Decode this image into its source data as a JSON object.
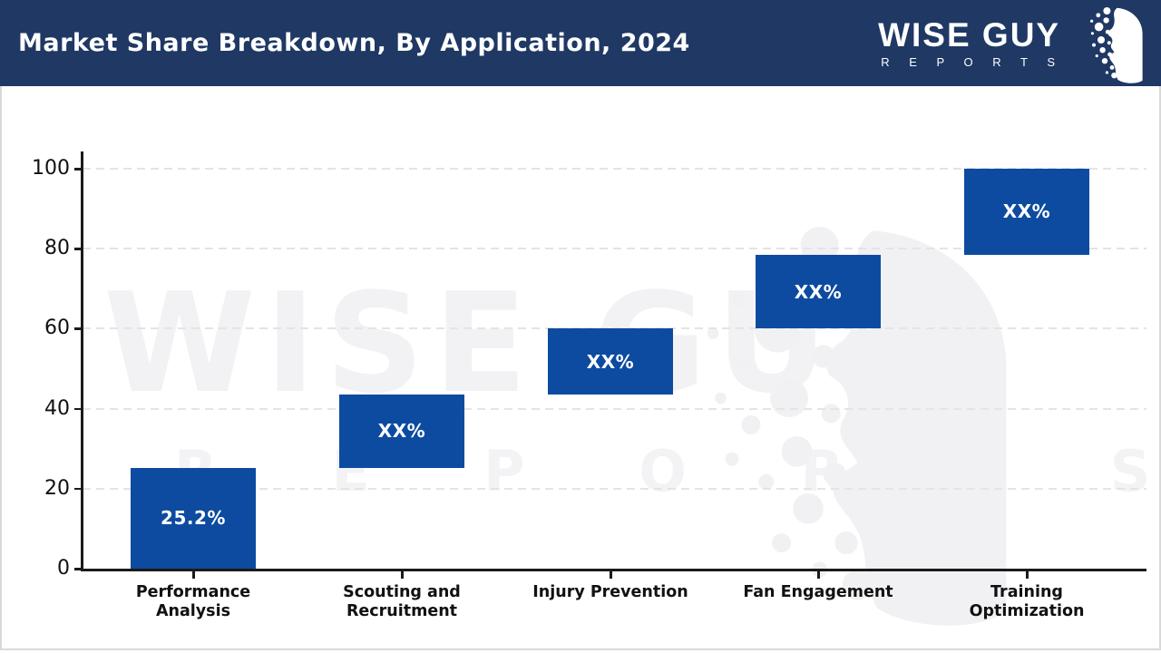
{
  "header": {
    "title": "Market Share Breakdown, By Application, 2024",
    "logo": {
      "line1": "WISE GUY",
      "line2": "R E P O R T S"
    }
  },
  "watermark": {
    "line1": "WISE GUY",
    "line2": "R E P O R T S"
  },
  "chart_data": {
    "type": "bar",
    "subtype": "waterfall",
    "title": "Market Share Breakdown, By Application, 2024",
    "xlabel": "",
    "ylabel": "",
    "categories": [
      "Performance Analysis",
      "Scouting and Recruitment",
      "Injury Prevention",
      "Fan Engagement",
      "Training Optimization"
    ],
    "category_lines": [
      [
        "Performance",
        "Analysis"
      ],
      [
        "Scouting and",
        "Recruitment"
      ],
      [
        "Injury Prevention"
      ],
      [
        "Fan Engagement"
      ],
      [
        "Training",
        "Optimization"
      ]
    ],
    "segments": [
      {
        "label": "25.2%",
        "start": 0,
        "end": 25.2
      },
      {
        "label": "XX%",
        "start": 25.2,
        "end": 43.6
      },
      {
        "label": "XX%",
        "start": 43.6,
        "end": 60.0
      },
      {
        "label": "XX%",
        "start": 60.0,
        "end": 78.5
      },
      {
        "label": "XX%",
        "start": 78.5,
        "end": 100.0
      }
    ],
    "yticks": [
      0,
      20,
      40,
      60,
      80,
      100
    ],
    "ylim": [
      0,
      104
    ],
    "grid": "horizontal-dashed",
    "legend": "none"
  },
  "colors": {
    "header_bg": "#1f3864",
    "bar": "#0d4ba0",
    "bar_label": "#ffffff",
    "grid": "#e4e4e4",
    "axis": "#1a1a1a",
    "watermark": "#f2f2f4",
    "card_border": "#d9d9d9"
  }
}
